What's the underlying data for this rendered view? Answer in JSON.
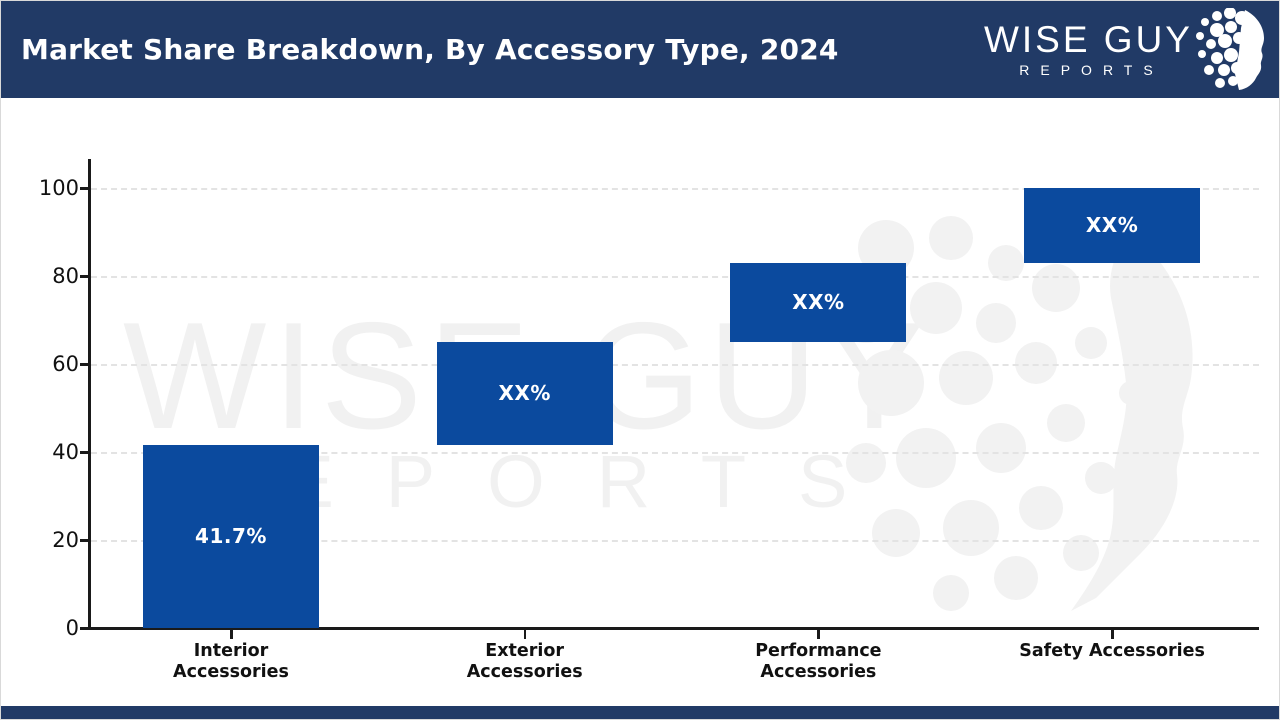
{
  "header": {
    "title": "Market Share Breakdown, By Accessory Type, 2024"
  },
  "logo": {
    "line1": "WISE GUY",
    "line2": "REPORTS"
  },
  "watermark": {
    "line1": "WISE GUY",
    "line2": "REPORTS"
  },
  "colors": {
    "header_navy": "#213a66",
    "bar_blue": "#0b4a9e",
    "bar_label": "#ffffff",
    "grid": "#e3e3e3",
    "axis": "#1a1a1a",
    "watermark": "#f1f1f1",
    "footer_navy": "#213a66"
  },
  "chart_data": {
    "type": "bar",
    "subtype": "waterfall",
    "title": "Market Share Breakdown, By Accessory Type, 2024",
    "xlabel": "",
    "ylabel": "",
    "ylim": [
      0,
      105
    ],
    "y_ticks": [
      0,
      20,
      40,
      60,
      80,
      100
    ],
    "grid": "horizontal-dashed",
    "legend": "none",
    "categories": [
      "Interior Accessories",
      "Exterior Accessories",
      "Performance Accessories",
      "Safety Accessories"
    ],
    "segments": [
      {
        "category": "Interior Accessories",
        "label_lines": [
          "Interior",
          "Accessories"
        ],
        "start": 0,
        "end": 41.7,
        "value_label": "41.7%"
      },
      {
        "category": "Exterior Accessories",
        "label_lines": [
          "Exterior",
          "Accessories"
        ],
        "start": 41.7,
        "end": 65,
        "value_label": "XX%"
      },
      {
        "category": "Performance Accessories",
        "label_lines": [
          "Performance",
          "Accessories"
        ],
        "start": 65,
        "end": 83,
        "value_label": "XX%"
      },
      {
        "category": "Safety Accessories",
        "label_lines": [
          "Safety Accessories"
        ],
        "start": 83,
        "end": 100,
        "value_label": "XX%"
      }
    ]
  }
}
